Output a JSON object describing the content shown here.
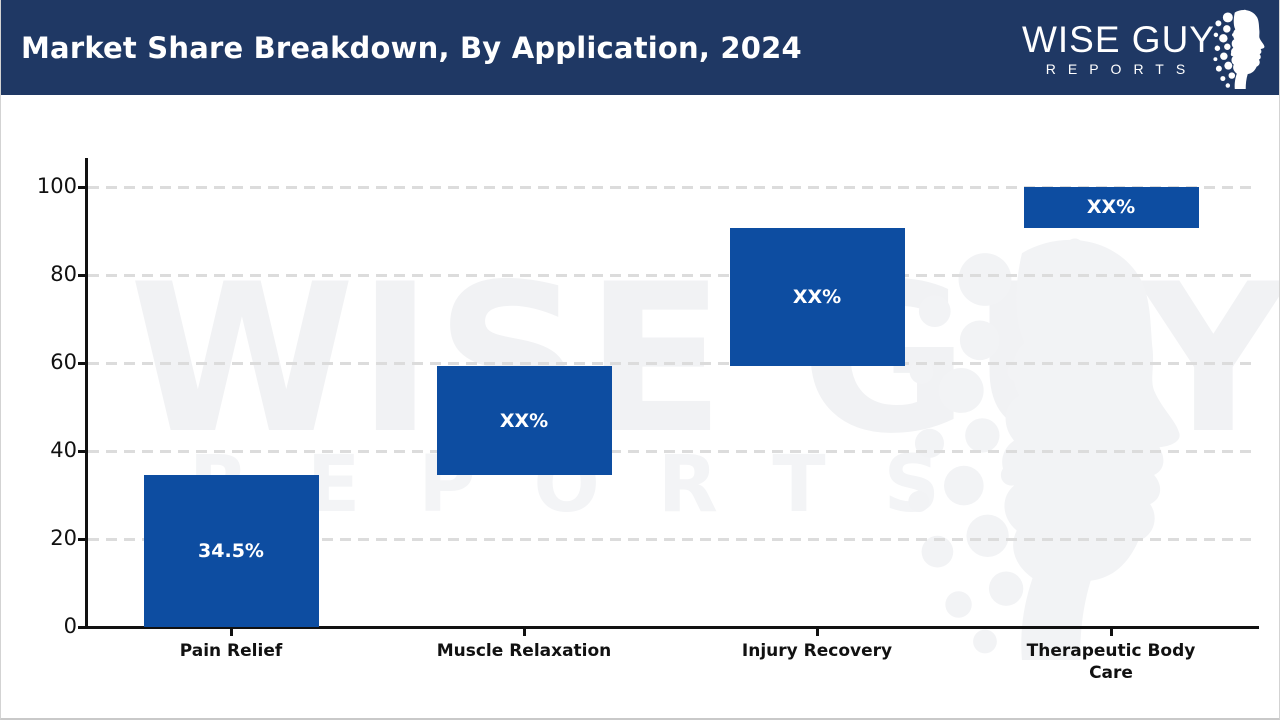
{
  "header": {
    "title": "Market Share Breakdown, By Application, 2024",
    "bg_color": "#1f3864",
    "logo": {
      "line1": "WISE GUY",
      "line2": "REPORTS",
      "icon": "head-profile-dots-icon"
    }
  },
  "watermark": {
    "line1": "WISE GUY",
    "line2": "REPORTS",
    "icon": "head-profile-dots-icon"
  },
  "chart_data": {
    "type": "bar",
    "subtype": "waterfall",
    "title": "Market Share Breakdown, By Application, 2024",
    "categories": [
      "Pain Relief",
      "Muscle Relaxation",
      "Injury Recovery",
      "Therapeutic Body Care"
    ],
    "segments": [
      {
        "category": "Pain Relief",
        "start": 0,
        "end": 34.5,
        "label": "34.5%"
      },
      {
        "category": "Muscle Relaxation",
        "start": 34.5,
        "end": 59.3,
        "label": "XX%"
      },
      {
        "category": "Injury Recovery",
        "start": 59.3,
        "end": 90.7,
        "label": "XX%"
      },
      {
        "category": "Therapeutic Body Care",
        "start": 90.7,
        "end": 100,
        "label": "XX%"
      }
    ],
    "yticks": [
      0,
      20,
      40,
      60,
      80,
      100
    ],
    "ylim": [
      0,
      106.6
    ],
    "grid": "horizontal-dashed",
    "legend": "none",
    "bar_color": "#0d4da1",
    "value_label_color": "#ffffff",
    "axis_color": "#111111",
    "gridline_color": "#dcdcdc"
  }
}
